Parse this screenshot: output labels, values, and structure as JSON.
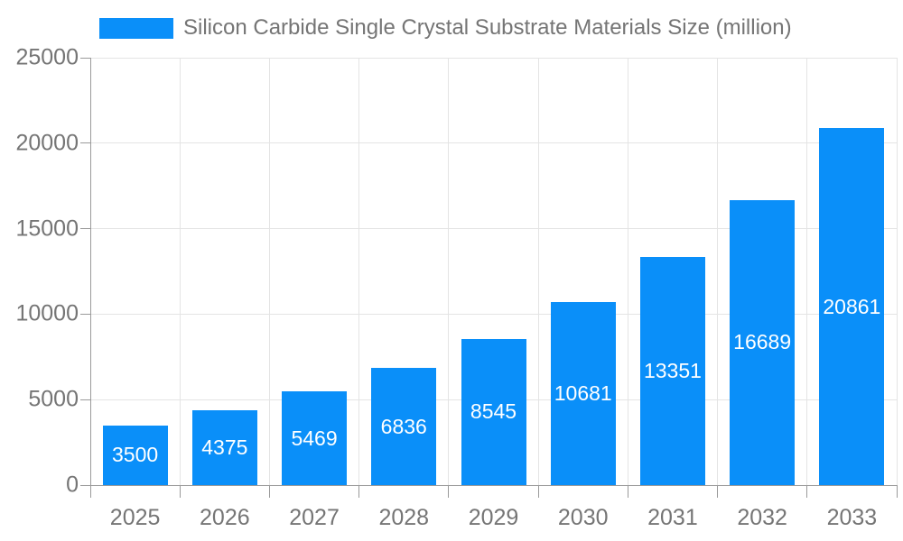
{
  "colors": {
    "bar": "#0a8ff9",
    "axis": "#9a9a9a",
    "gridline": "#e4e4e4",
    "tick_label": "#757575",
    "bar_value_label": "#ffffff",
    "background": "#ffffff"
  },
  "legend": {
    "label": "Silicon Carbide Single Crystal Substrate Materials Size (million)"
  },
  "chart_data": {
    "type": "bar",
    "title": "Silicon Carbide Single Crystal Substrate Materials Size (million)",
    "categories": [
      "2025",
      "2026",
      "2027",
      "2028",
      "2029",
      "2030",
      "2031",
      "2032",
      "2033"
    ],
    "series": [
      {
        "name": "Silicon Carbide Single Crystal Substrate Materials Size (million)",
        "color": "#0a8ff9",
        "values": [
          3500,
          4375,
          5469,
          6836,
          8545,
          10681,
          13351,
          16689,
          20861
        ]
      }
    ],
    "xlabel": "",
    "ylabel": "",
    "ylim": [
      0,
      25000
    ],
    "yticks": [
      0,
      5000,
      10000,
      15000,
      20000,
      25000
    ],
    "grid": true,
    "legend_position": "top-left",
    "value_labels_position": "inside-center"
  }
}
